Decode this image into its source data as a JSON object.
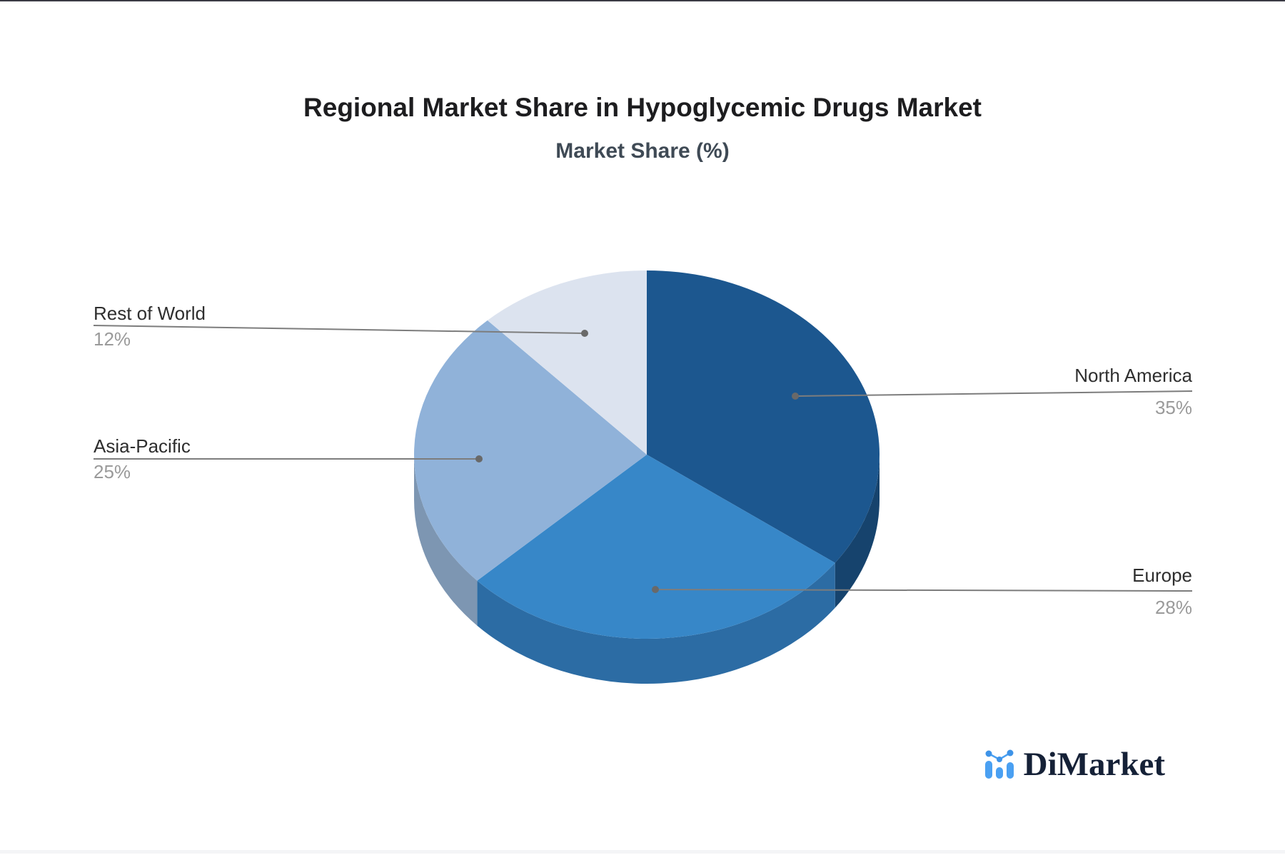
{
  "header": {
    "title": "Regional Market Share in Hypoglycemic Drugs Market",
    "subtitle": "Market Share (%)"
  },
  "chart_data": {
    "type": "pie",
    "style": "3d-pie-with-depth",
    "title": "Regional Market Share in Hypoglycemic Drugs Market",
    "subtitle": "Market Share (%)",
    "unit": "%",
    "direction": "clockwise",
    "start_angle_deg": 0,
    "legend_position": "callout-labels",
    "slices": [
      {
        "label": "North America",
        "value": 35,
        "pct": "35%",
        "color": "#1C578F",
        "side_color": "#16436D"
      },
      {
        "label": "Europe",
        "value": 28,
        "pct": "28%",
        "color": "#3787C8",
        "side_color": "#2C6CA4"
      },
      {
        "label": "Asia-Pacific",
        "value": 25,
        "pct": "25%",
        "color": "#90B2D9",
        "side_color": "#7D96B2"
      },
      {
        "label": "Rest of World",
        "value": 12,
        "pct": "12%",
        "color": "#DCE3EF",
        "side_color": "#AEBACB"
      }
    ]
  },
  "colors": {
    "leader_line": "#7d7d7d",
    "leader_dot": "#696969",
    "label_text": "#2e2e2e",
    "percent_text": "#9a9a9a",
    "logo_accent": "#4AA0F2",
    "logo_text_color": "#152137"
  },
  "logo": {
    "text": "DiMarket",
    "icon": "bar-chart-logo-icon"
  }
}
